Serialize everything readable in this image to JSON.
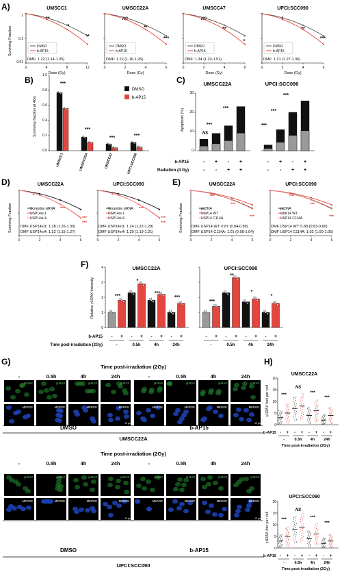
{
  "panel_letters": [
    "A)",
    "B)",
    "C)",
    "D)",
    "E)",
    "F)",
    "G)",
    "H)"
  ],
  "colors": {
    "control": "#555555",
    "treated": "#e2463f",
    "dark": "#111111",
    "grey": "#9a9a9a",
    "cell_green": "#1f7a2a",
    "cell_blue": "#1c3fb0"
  },
  "common": {
    "surviving_fraction": "Surviving Fraction",
    "dose": "Dose (Gy)",
    "ba15": "b-AP15",
    "radiation": "Radiation (4 Gy)",
    "time_post": "Time post-irradiation (2Gy)",
    "minus": "-",
    "plus": "+",
    "times": [
      "-",
      "0.5h",
      "4h",
      "24h"
    ],
    "gamma": "γH2AX",
    "merge": "MERGE",
    "scale": "10 μm",
    "dmso": "DMSO"
  },
  "panelA": {
    "plots": [
      {
        "title": "UMSCC1",
        "xticks": [
          "0",
          "4",
          "8",
          "12"
        ],
        "dmf": "DMF: 1.22 (1.14-1.35)",
        "sig": [
          "**",
          "*",
          "**"
        ]
      },
      {
        "title": "UMSCC22A",
        "xticks": [
          "0",
          "2",
          "4",
          "6"
        ],
        "dmf": "DMF: 1.22 (1.16-1.26)",
        "sig": [
          "NS",
          "**",
          "***"
        ]
      },
      {
        "title": "UMSCC47",
        "xticks": [
          "0",
          "2",
          "4",
          "6"
        ],
        "dmf": "DMF: 1.34 (1.23-1.51)",
        "sig": [
          "NS",
          "**",
          "*"
        ]
      },
      {
        "title": "UPCI:SCC090",
        "xticks": [
          "0",
          "2",
          "4",
          "6"
        ],
        "dmf": "DMF: 1.31 (1.27-1.36)",
        "sig": [
          "*",
          "**",
          "***"
        ]
      }
    ],
    "yticks": [
      "1",
      "0.1",
      "0.01"
    ],
    "legend": [
      "DMSO",
      "b-AP15"
    ]
  },
  "panelB": {
    "chart_data": {
      "type": "bar",
      "categories": [
        "UMSCC1",
        "UMSCC22A",
        "UMSCC47",
        "UPCI:SCC090"
      ],
      "series": [
        {
          "name": "DMSO",
          "values": [
            0.77,
            0.18,
            0.09,
            0.11
          ]
        },
        {
          "name": "b-AP15",
          "values": [
            0.56,
            0.11,
            0.04,
            0.05
          ]
        }
      ],
      "ylabel": "Surviving fraction at 4Gy",
      "yticks": [
        "0.0",
        "0.2",
        "0.4",
        "0.6",
        "0.8",
        "1.0"
      ],
      "ylim": [
        0,
        1.0
      ],
      "sig": [
        "***",
        "***",
        "***",
        "***"
      ]
    }
  },
  "panelC": {
    "ylabel": "Apoptosis (%)",
    "yticks": [
      "0",
      "10",
      "20",
      "30"
    ],
    "plots": [
      {
        "title": "UMSCC22A",
        "values": [
          6,
          9,
          13,
          23
        ],
        "sig": [
          "NS",
          "***",
          "***"
        ]
      },
      {
        "title": "UPCI:SCC090",
        "values": [
          3,
          11,
          20,
          26
        ],
        "sig": [
          "***",
          "***",
          "***"
        ]
      }
    ],
    "ba15_row": [
      "-",
      "+",
      "-",
      "+"
    ],
    "rad_row": [
      "-",
      "-",
      "+",
      "+"
    ]
  },
  "panelD": {
    "plots": [
      {
        "title": "UMSCC22A",
        "legend": [
          "Scramble siRNA",
          "USP14si-1",
          "USP14si-4"
        ],
        "dmf": [
          "DMF USP14si1: 1.28 (1.26-1.30)",
          "DMF USP14si4: 1.22 (1.15-1.27)"
        ]
      },
      {
        "title": "UPCI:SCC090",
        "legend": [
          "Scramble siRNA",
          "USP14si-1",
          "USP14si-4"
        ],
        "dmf": [
          "DMF USP14si1: 1.24 (1.22-1.29)",
          "DMF USP14si4: 1.20 (1.19-1.21)"
        ]
      }
    ],
    "xticks": [
      "0",
      "2",
      "4",
      "6"
    ]
  },
  "panelE": {
    "plots": [
      {
        "title": "UMSCC22A",
        "legend": [
          "pcDNA",
          "USP14 WT",
          "USP14 C114A"
        ],
        "dmf": [
          "DMF USP14 WT: 0.87 (0.84-0.89)",
          "DMF USP14 C114A: 1.01 (0.98-1.04)"
        ]
      },
      {
        "title": "UPCI:SCC090",
        "legend": [
          "pcDNA",
          "USP14 WT",
          "USP14 C114A"
        ],
        "dmf": [
          "DMF USP14 WT: 0.89 (0.83-0.90)",
          "DMF USP14 C114A: 1.02 (1.00-1.05)"
        ]
      }
    ],
    "xticks": [
      "0",
      "2",
      "4",
      "6"
    ]
  },
  "panelF": {
    "ylabel": "Relative γH2AX Intensity",
    "yticks": [
      "0",
      "1",
      "2",
      "3",
      "4"
    ],
    "plots": [
      {
        "title": "UMSCC22A",
        "values": [
          1.0,
          1.8,
          2.3,
          2.9,
          1.8,
          2.2,
          1.0,
          1.6
        ],
        "sig": [
          "***",
          "*",
          "***",
          "***"
        ]
      },
      {
        "title": "UPCI:SCC090",
        "values": [
          1.0,
          1.4,
          2.3,
          3.3,
          1.7,
          1.9,
          1.0,
          1.6
        ],
        "sig": [
          "***",
          "**",
          "*",
          "*"
        ]
      }
    ],
    "ba15_row": [
      "-",
      "+",
      "-",
      "+",
      "-",
      "+",
      "-",
      "+"
    ]
  },
  "panelG": {
    "blocks": [
      {
        "cell_line": "UMSCC22A"
      },
      {
        "cell_line": "UPCI:SCC090"
      }
    ]
  },
  "panelH": {
    "ylabel": "γH2AX foci per cell",
    "yticks": [
      "0",
      "5",
      "10",
      "15",
      "20"
    ],
    "plots": [
      {
        "title": "UMSCC22A",
        "means": [
          3,
          5,
          7,
          8,
          4,
          6,
          2,
          4
        ],
        "sig": [
          "***",
          "NS",
          "***",
          "***"
        ]
      },
      {
        "title": "UPCI:SCC090",
        "means": [
          3,
          5,
          8,
          9,
          4,
          6,
          2,
          3
        ],
        "sig": [
          "***",
          "NS",
          "***",
          "***"
        ]
      }
    ]
  }
}
